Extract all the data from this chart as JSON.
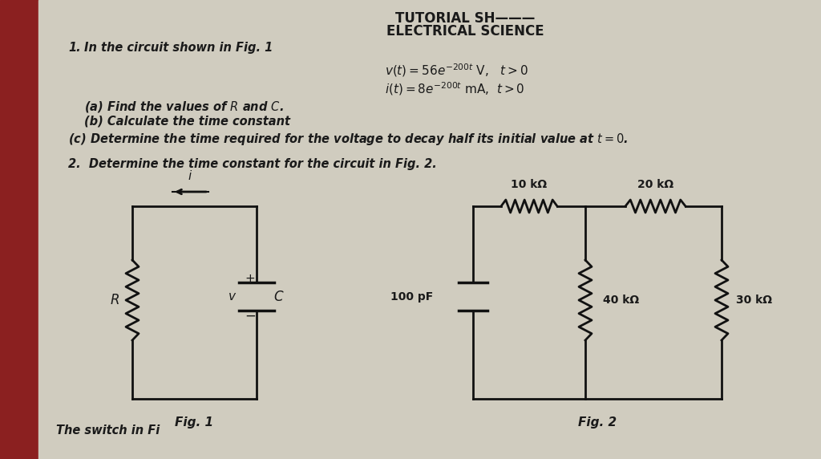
{
  "bg_color": "#b8b0a0",
  "paper_color": "#d8d4cc",
  "left_margin_color": "#9a3030",
  "text_color": "#1a1a1a",
  "title1": "TUTORIAL SH",
  "title2": "ELECTRICAL SCIENCE",
  "q1_intro": "1.  In the circuit shown in Fig. 1",
  "eq1": "$v(t) = 56e^{-200t}$ V,   $t > 0$",
  "eq2": "$i(t) = 8e^{-200t}$ mA,  $t > 0$",
  "qa": "(a) Find the values of $R$ and $C$.",
  "qb": "(b) Calculate the time constant",
  "qc": "(c) Determine the time required for the voltage to decay half its initial value at $t = 0$.",
  "q2_intro": "2.  Determine the time constant for the circuit in Fig. 2.",
  "fig1_label": "Fig. 1",
  "fig2_label": "Fig. 2",
  "fig2_10k": "10 kΩ",
  "fig2_20k": "20 kΩ",
  "fig2_100p": "100 pF",
  "fig2_40k": "40 kΩ",
  "fig2_30k": "30 kΩ",
  "bottom_text": "The switch in Fi",
  "fs_title": 12,
  "fs_body": 10.5,
  "fs_eq": 11,
  "fs_label": 10
}
